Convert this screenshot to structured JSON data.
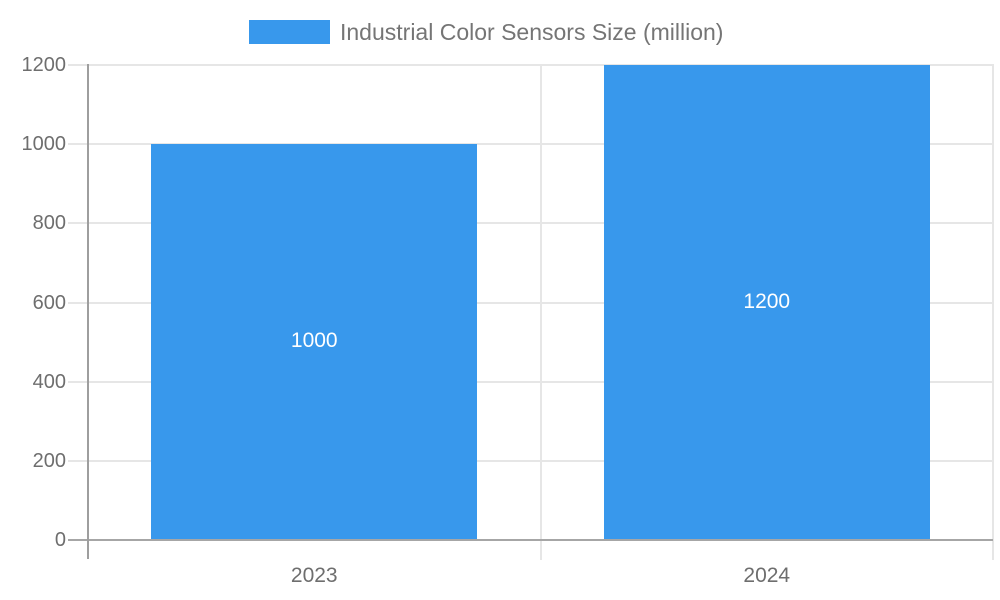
{
  "chart_data": {
    "type": "bar",
    "title": "Industrial Color Sensors Size (million)",
    "categories": [
      "2023",
      "2024"
    ],
    "values": [
      1000,
      1200
    ],
    "series": [
      {
        "name": "Industrial Color Sensors Size (million)",
        "values": [
          1000,
          1200
        ]
      }
    ],
    "data_labels": [
      "1000",
      "1200"
    ],
    "yticks": [
      0,
      200,
      400,
      600,
      800,
      1000,
      1200
    ],
    "ylim": [
      0,
      1200
    ],
    "xlabel": "",
    "ylabel": "",
    "grid": true,
    "legend_position": "top",
    "colors": {
      "bar": "#3898ec",
      "data_label": "#ffffff",
      "axis_label": "#6e6e6e",
      "legend_text": "#757575",
      "gridline": "#e6e6e6",
      "axis_line": "#9e9e9e",
      "baseline": "#a6a6a6"
    }
  }
}
